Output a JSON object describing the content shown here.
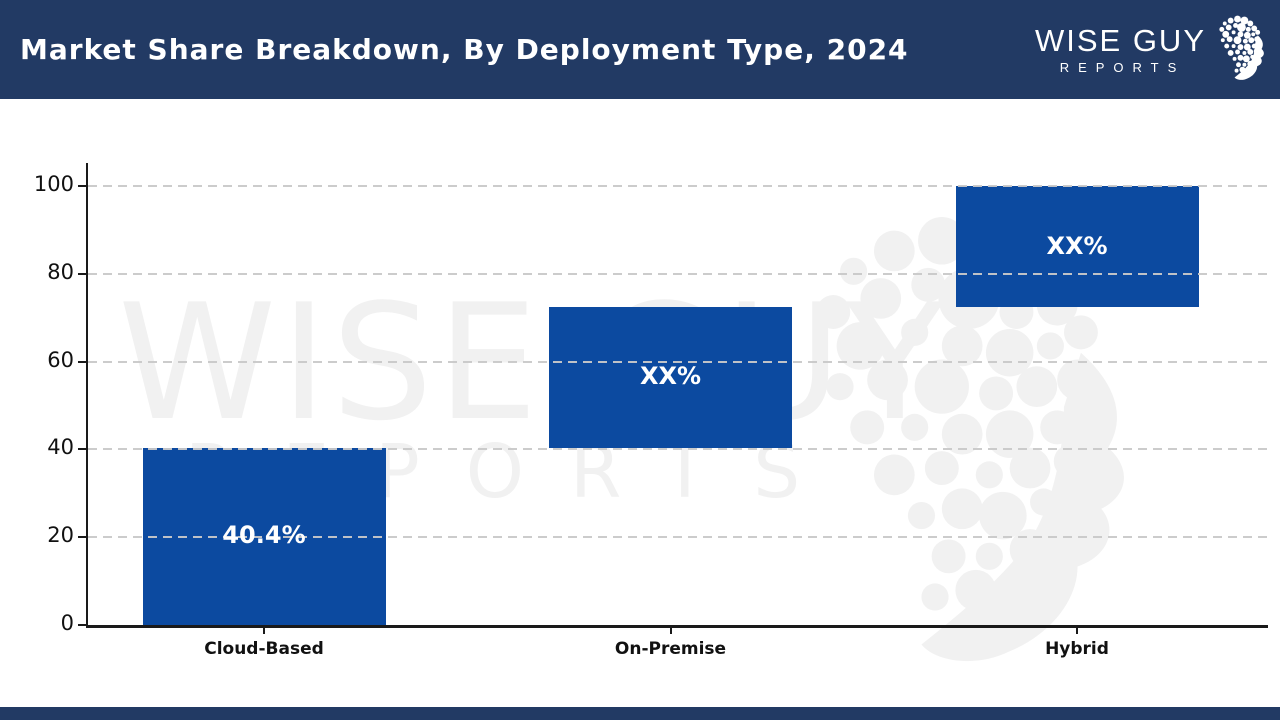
{
  "header": {
    "title": "Market Share Breakdown, By Deployment Type, 2024",
    "logo": {
      "line1": "WISE GUY",
      "line2": "REPORTS"
    }
  },
  "watermark": {
    "line1": "WISE GUY",
    "line2": "REPORTS"
  },
  "colors": {
    "header_bg": "#223A64",
    "footer_bg": "#223A64",
    "bar_fill": "#0C4AA0",
    "bar_label_text": "#FFFFFF",
    "grid": "#C9C9C9",
    "axis": "#1A1A1A",
    "tick_label": "#111111",
    "watermark": "#F1F1F1"
  },
  "chart_data": {
    "type": "bar",
    "subtype": "waterfall-stacked-segments",
    "title": "Market Share Breakdown, By Deployment Type, 2024",
    "categories": [
      "Cloud-Based",
      "On-Premise",
      "Hybrid"
    ],
    "bars": [
      {
        "category": "Cloud-Based",
        "start": 0,
        "end": 40.4,
        "label": "40.4%"
      },
      {
        "category": "On-Premise",
        "start": 40.4,
        "end": 72.4,
        "label": "XX%"
      },
      {
        "category": "Hybrid",
        "start": 72.4,
        "end": 100,
        "label": "XX%"
      }
    ],
    "xlabel": "",
    "ylabel": "",
    "yticks": [
      0,
      20,
      40,
      60,
      80,
      100
    ],
    "ylim": [
      0,
      105
    ],
    "grid": "horizontal-dashed",
    "legend": "none"
  }
}
